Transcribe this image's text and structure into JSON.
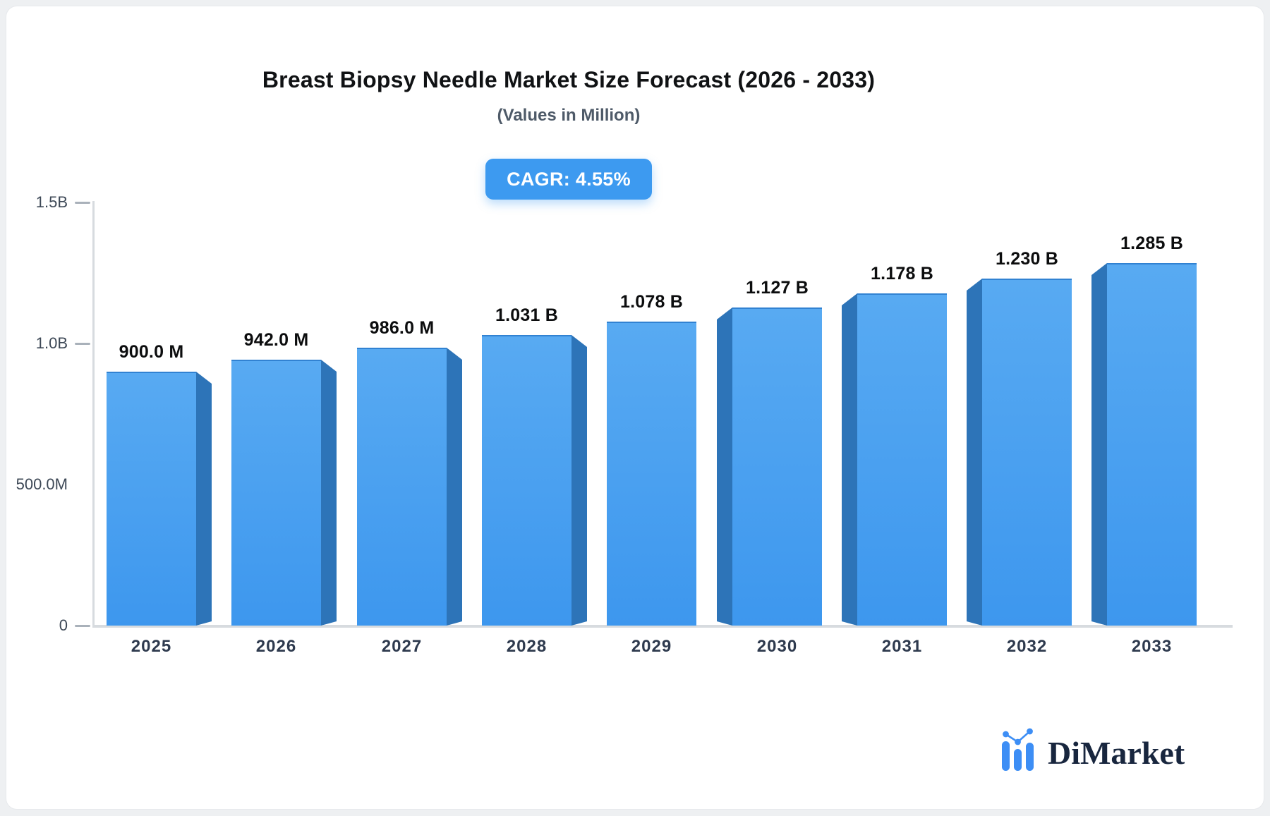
{
  "page": {
    "background": "#eef0f2",
    "card_background": "#ffffff"
  },
  "chart_data": {
    "type": "bar",
    "title": "Breast Biopsy Needle Market Size Forecast (2026 - 2033)",
    "subtitle": "(Values in Million)",
    "badge_label": "CAGR: 4.55%",
    "categories": [
      "2025",
      "2026",
      "2027",
      "2028",
      "2029",
      "2030",
      "2031",
      "2032",
      "2033"
    ],
    "values": [
      900,
      942,
      986,
      1031,
      1078,
      1127,
      1178,
      1230,
      1285
    ],
    "value_labels": [
      "900.0 M",
      "942.0 M",
      "986.0 M",
      "1.031 B",
      "1.078 B",
      "1.127 B",
      "1.178 B",
      "1.230 B",
      "1.285 B"
    ],
    "ylim": [
      0,
      1500
    ],
    "y_axis_ticks": [
      {
        "label": "1.5B",
        "value": 1500,
        "dash": true
      },
      {
        "label": "1.0B",
        "value": 1000,
        "dash": true
      },
      {
        "label": "500.0M",
        "value": 500,
        "dash": false
      },
      {
        "label": "0",
        "value": 0,
        "dash": true
      }
    ],
    "legend": "none",
    "grid": "off",
    "colors": {
      "bar_top": "#58aaf2",
      "bar_bottom": "#3d97ee",
      "bar_side": "#2d74b8",
      "badge_bg": "#3d9af0",
      "axis_line": "#d7dbdf",
      "tick_text": "#3d4856",
      "year_text": "#2e3a4e",
      "value_text": "#0c0d0e"
    }
  },
  "logo": {
    "text": "DiMarket",
    "icon": "bar-chart-with-trend-dots-icon",
    "icon_color": "#3d8ef5",
    "text_color": "#18263e"
  }
}
